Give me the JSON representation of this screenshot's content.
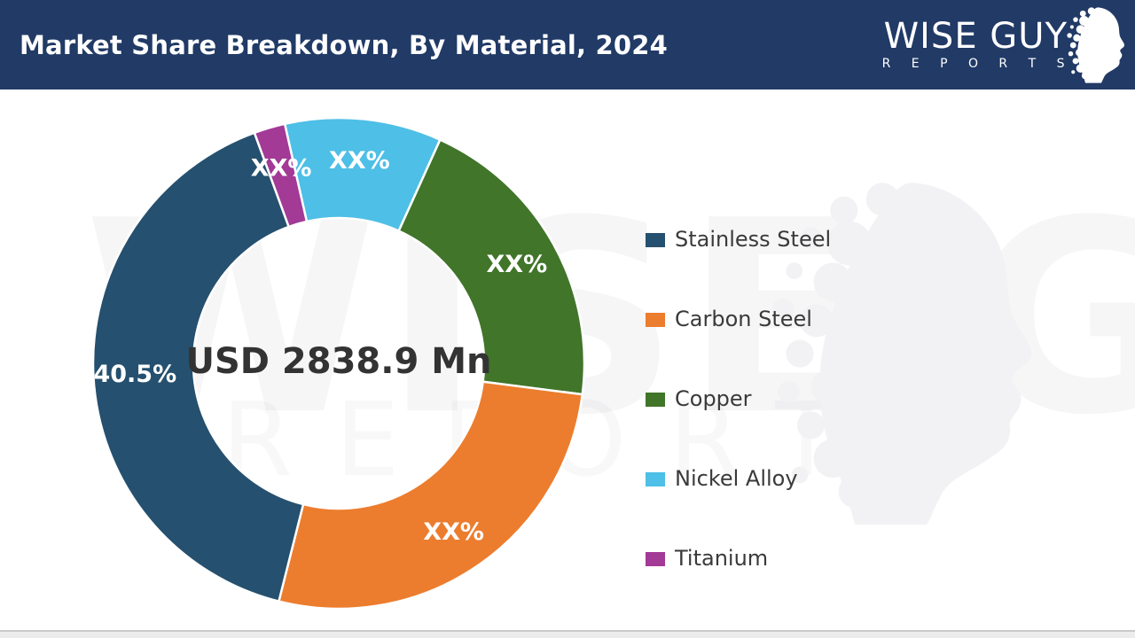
{
  "header": {
    "title": "Market Share Breakdown, By Material, 2024",
    "logo": {
      "line1": "WISE GUY",
      "line2": "R E P O R T S"
    }
  },
  "chart_data": {
    "type": "pie",
    "subtype": "donut",
    "title": "Market Share Breakdown, By Material, 2024",
    "center_label": "USD 2838.9 Mn",
    "unit": "percent",
    "series": [
      {
        "name": "Stainless Steel",
        "display_label": "40.5%",
        "value_pct": 40.5,
        "color": "#25506F"
      },
      {
        "name": "Carbon Steel",
        "display_label": "XX%",
        "value_pct": 26.9,
        "color": "#EC7D2E"
      },
      {
        "name": "Copper",
        "display_label": "XX%",
        "value_pct": 20.25,
        "color": "#41752A"
      },
      {
        "name": "Nickel Alloy",
        "display_label": "XX%",
        "value_pct": 10.3,
        "color": "#4EBFE6"
      },
      {
        "name": "Titanium",
        "display_label": "XX%",
        "value_pct": 2.05,
        "color": "#A23A96"
      }
    ],
    "draw_order": [
      "Nickel Alloy",
      "Copper",
      "Carbon Steel",
      "Stainless Steel",
      "Titanium"
    ],
    "start_angle_deg": -12.7,
    "direction": "clockwise",
    "legend_position": "right",
    "geometry": {
      "outer_radius": 277,
      "inner_radius": 164,
      "label_radius": 230
    }
  },
  "watermark": {
    "line1": "WISE GUY",
    "line2": "REPORTS"
  },
  "colors": {
    "header_background": "#213A66",
    "center_text": "#333333",
    "legend_text": "#3a3a3a",
    "footer_strip": "#ececec",
    "footer_line": "#c9c9c9"
  }
}
